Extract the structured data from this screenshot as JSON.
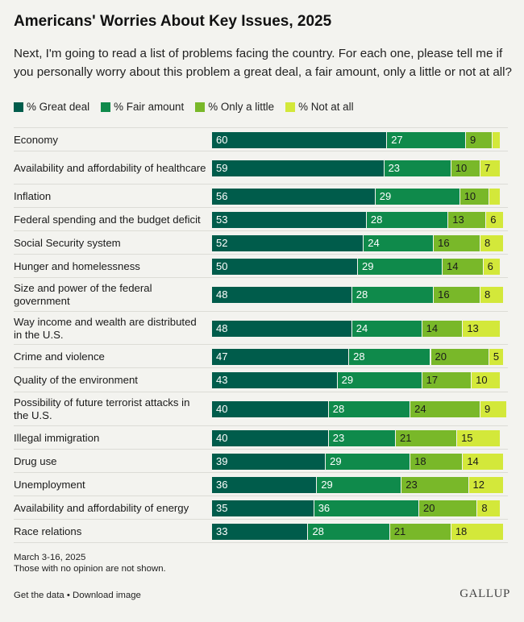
{
  "chart_data": {
    "type": "bar",
    "orientation": "horizontal",
    "stacked": true,
    "title": "Americans' Worries About Key Issues, 2025",
    "subtitle": "Next, I'm going to read a list of problems facing the country. For each one, please tell me if you personally worry about this problem a great deal, a fair amount, only a little or not at all?",
    "xlim": [
      0,
      100
    ],
    "legend_position": "top-left",
    "categories": [
      "Economy",
      "Availability and affordability of healthcare",
      "Inflation",
      "Federal spending and the budget deficit",
      "Social Security system",
      "Hunger and homelessness",
      "Size and power of the federal government",
      "Way income and wealth are distributed in the U.S.",
      "Crime and violence",
      "Quality of the environment",
      "Possibility of future terrorist attacks in the U.S.",
      "Illegal immigration",
      "Drug use",
      "Unemployment",
      "Availability and affordability of energy",
      "Race relations"
    ],
    "series": [
      {
        "name": "% Great deal",
        "color": "#005c4b",
        "label_color": "#ffffff",
        "values": [
          60,
          59,
          56,
          53,
          52,
          50,
          48,
          48,
          47,
          43,
          40,
          40,
          39,
          36,
          35,
          33
        ]
      },
      {
        "name": "% Fair amount",
        "color": "#0f8a4b",
        "label_color": "#ffffff",
        "values": [
          27,
          23,
          29,
          28,
          24,
          29,
          28,
          24,
          28,
          29,
          28,
          23,
          29,
          29,
          36,
          28
        ]
      },
      {
        "name": "% Only a little",
        "color": "#79b829",
        "label_color": "#1a1a1a",
        "values": [
          9,
          10,
          10,
          13,
          16,
          14,
          16,
          14,
          20,
          17,
          24,
          21,
          18,
          23,
          20,
          21
        ]
      },
      {
        "name": "% Not at all",
        "color": "#d3e83a",
        "label_color": "#1a1a1a",
        "values": [
          3,
          7,
          4,
          6,
          8,
          6,
          8,
          13,
          5,
          10,
          9,
          15,
          14,
          12,
          8,
          18
        ]
      }
    ],
    "labels_hidden": [
      [
        false,
        false,
        false,
        true
      ],
      [
        false,
        false,
        false,
        false
      ],
      [
        false,
        false,
        false,
        true
      ],
      [
        false,
        false,
        false,
        false
      ],
      [
        false,
        false,
        false,
        false
      ],
      [
        false,
        false,
        false,
        false
      ],
      [
        false,
        false,
        false,
        false
      ],
      [
        false,
        false,
        false,
        false
      ],
      [
        false,
        false,
        false,
        false
      ],
      [
        false,
        false,
        false,
        false
      ],
      [
        false,
        false,
        false,
        false
      ],
      [
        false,
        false,
        false,
        false
      ],
      [
        false,
        false,
        false,
        false
      ],
      [
        false,
        false,
        false,
        false
      ],
      [
        false,
        false,
        false,
        false
      ],
      [
        false,
        false,
        false,
        false
      ]
    ]
  },
  "footnote": {
    "date": "March 3-16, 2025",
    "note": "Those with no opinion are not shown."
  },
  "links": {
    "get_data": "Get the data",
    "separator": " • ",
    "download": "Download image"
  },
  "brand": "GALLUP"
}
